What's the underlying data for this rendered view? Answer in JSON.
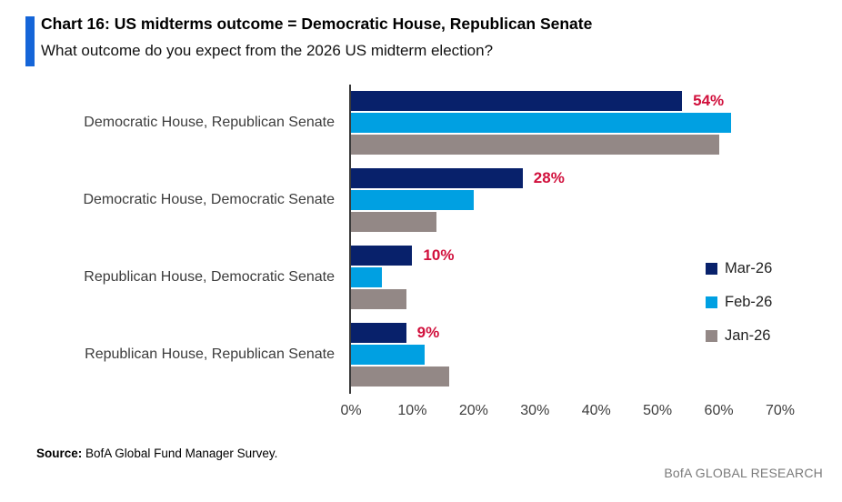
{
  "header": {
    "title": "Chart 16: US midterms outcome = Democratic House, Republican Senate",
    "subtitle": "What outcome do you expect from the 2026 US midterm election?"
  },
  "chart_data": {
    "type": "bar",
    "orientation": "horizontal",
    "title": "Chart 16: US midterms outcome = Democratic House, Republican Senate",
    "question": "What outcome do you expect from the 2026 US midterm election?",
    "categories": [
      "Democratic House, Republican Senate",
      "Democratic House, Democratic Senate",
      "Republican House, Democratic Senate",
      "Republican House, Republican Senate"
    ],
    "series": [
      {
        "name": "Mar-26",
        "color_key": "mar26",
        "values": [
          54,
          28,
          10,
          9
        ],
        "data_labels": [
          "54%",
          "28%",
          "10%",
          "9%"
        ]
      },
      {
        "name": "Feb-26",
        "color_key": "feb26",
        "values": [
          62,
          20,
          5,
          12
        ]
      },
      {
        "name": "Jan-26",
        "color_key": "jan26",
        "values": [
          60,
          14,
          9,
          16
        ]
      }
    ],
    "xlim": [
      0,
      70
    ],
    "x_ticks": [
      "0%",
      "10%",
      "20%",
      "30%",
      "40%",
      "50%",
      "60%",
      "70%"
    ],
    "legend": {
      "entries": [
        "Mar-26",
        "Feb-26",
        "Jan-26"
      ],
      "position": "right-center"
    },
    "grid": false
  },
  "colors": {
    "accent_bar": "#1565d8",
    "mar26": "#08216b",
    "feb26": "#00a0e2",
    "jan26": "#938886",
    "value_label": "#d1103c",
    "axis": "#3a3a3a"
  },
  "footer": {
    "source_label": "Source:",
    "source_text": "BofA Global Fund Manager Survey.",
    "brand": "BofA GLOBAL RESEARCH"
  }
}
